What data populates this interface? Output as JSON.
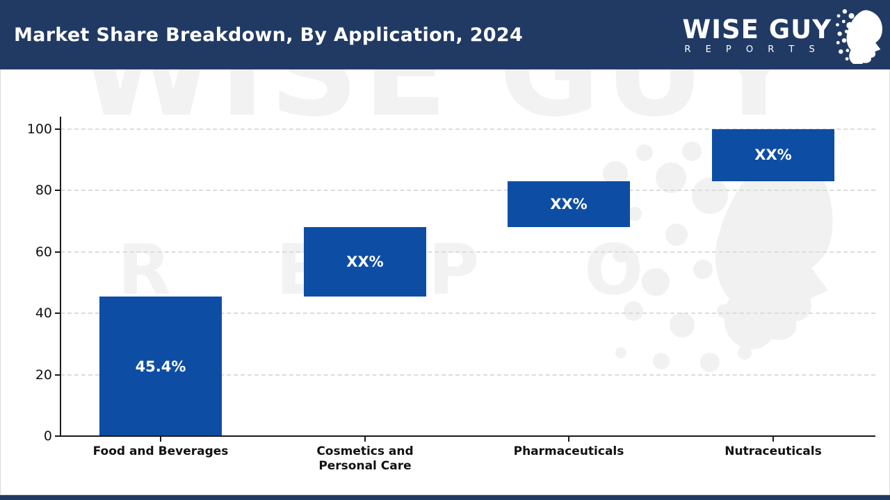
{
  "header": {
    "title": "Market Share Breakdown, By Application, 2024",
    "bg_color": "#213A64",
    "logo": {
      "brand_line1": "WISE GUY",
      "brand_line2": "R E P O R T S"
    }
  },
  "watermark": {
    "line1": "WISE GUY",
    "line2": "R E P O R T S"
  },
  "chart_data": {
    "type": "bar",
    "variant": "waterfall",
    "title": "Market Share Breakdown, By Application, 2024",
    "categories": [
      "Food and Beverages",
      "Cosmetics and\nPersonal Care",
      "Pharmaceuticals",
      "Nutraceuticals"
    ],
    "segments": [
      {
        "category": "Food and Beverages",
        "start": 0,
        "end": 45.4,
        "label": "45.4%"
      },
      {
        "category": "Cosmetics and Personal Care",
        "start": 45.4,
        "end": 68.1,
        "label": "XX%"
      },
      {
        "category": "Pharmaceuticals",
        "start": 68.1,
        "end": 83.1,
        "label": "XX%"
      },
      {
        "category": "Nutraceuticals",
        "start": 83.1,
        "end": 100,
        "label": "XX%"
      }
    ],
    "xlabel": "",
    "ylabel": "",
    "yticks": [
      0,
      20,
      40,
      60,
      80,
      100
    ],
    "ylim": [
      0,
      105
    ],
    "grid": "horizontal-dashed",
    "legend": "none",
    "bar_color": "#0E4DA4",
    "bar_label_color": "#FFFFFF",
    "axis_color": "#1A1A1A",
    "gridline_color": "#DCDCDC"
  }
}
